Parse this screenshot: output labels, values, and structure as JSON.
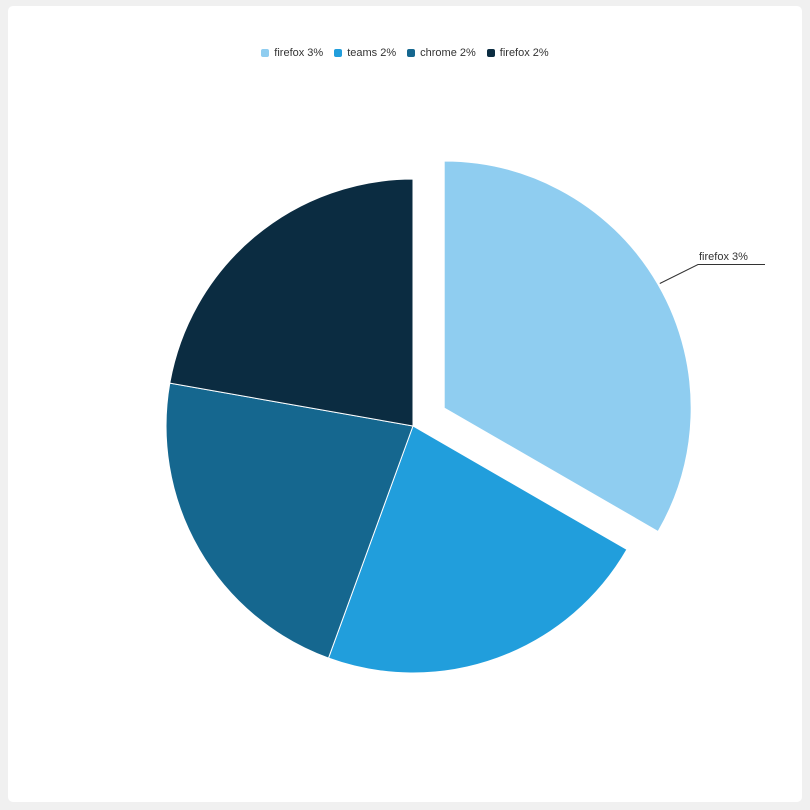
{
  "page": {
    "background_color": "#f0f0f0",
    "card_color": "#ffffff"
  },
  "chart_data": {
    "type": "pie",
    "title": "",
    "direction": "clockwise",
    "start_angle_deg": 0,
    "legend_position": "top",
    "slices": [
      {
        "label": "firefox 3%",
        "name": "firefox",
        "value": 3,
        "color": "#8fcdf0",
        "exploded": true,
        "data_label": "firefox 3%"
      },
      {
        "label": "teams 2%",
        "name": "teams",
        "value": 2,
        "color": "#219edc",
        "exploded": false,
        "data_label": ""
      },
      {
        "label": "chrome 2%",
        "name": "chrome",
        "value": 2,
        "color": "#15678f",
        "exploded": false,
        "data_label": ""
      },
      {
        "label": "firefox 2%",
        "name": "firefox",
        "value": 2,
        "color": "#0b2c41",
        "exploded": false,
        "data_label": ""
      }
    ],
    "text_color": "#333333",
    "connector_color": "#333333",
    "slice_border_color": "#ffffff"
  }
}
